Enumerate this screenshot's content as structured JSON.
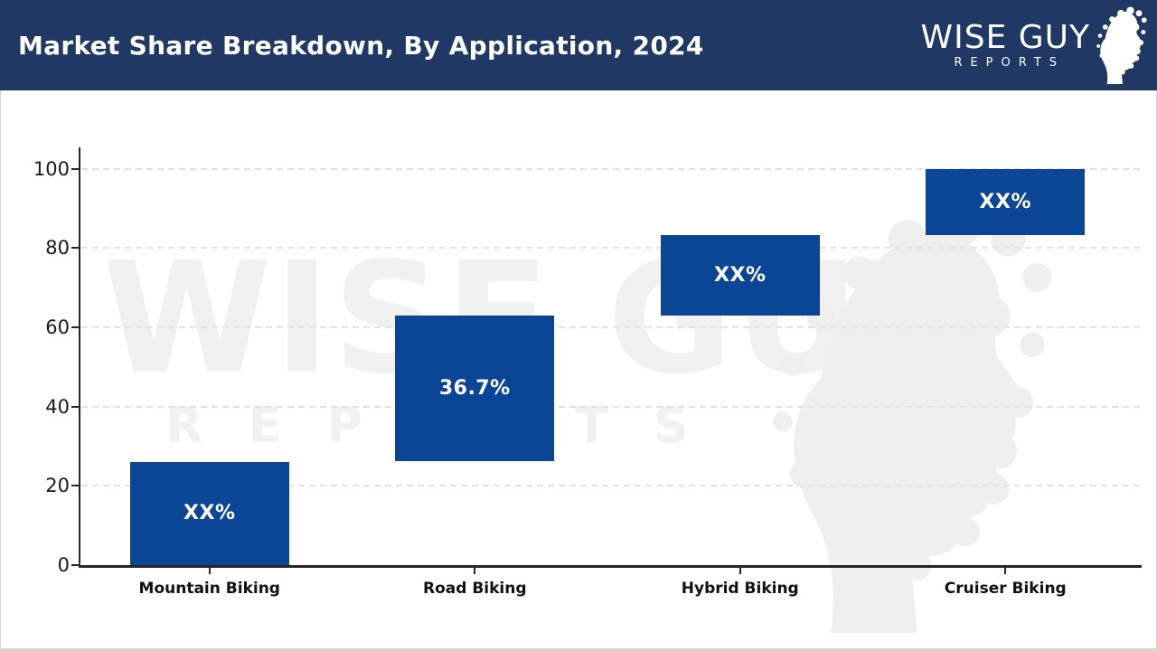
{
  "header": {
    "title": "Market Share Breakdown, By Application, 2024",
    "brand": {
      "line1": "WISE GUY",
      "line2": "REPORTS"
    }
  },
  "watermark": {
    "line1": "WISE GUY",
    "line2": "REPORTS"
  },
  "colors": {
    "header_bg": "#1f3864",
    "bar": "#0b4596",
    "grid": "#e1e1e1",
    "axis": "#262626",
    "text": "#1a1a1a",
    "bar_label": "#ffffff",
    "watermark": "#f1f1f1",
    "card_border": "#d5d5d5"
  },
  "chart_data": {
    "type": "bar",
    "subtype": "floating-waterfall",
    "title": "Market Share Breakdown, By Application, 2024",
    "categories": [
      "Mountain Biking",
      "Road Biking",
      "Hybrid Biking",
      "Cruiser Biking"
    ],
    "segments": [
      {
        "category": "Mountain Biking",
        "start": 0,
        "end": 26,
        "label": "XX%"
      },
      {
        "category": "Road Biking",
        "start": 26.3,
        "end": 63,
        "label": "36.7%"
      },
      {
        "category": "Hybrid Biking",
        "start": 63,
        "end": 83.3,
        "label": "XX%"
      },
      {
        "category": "Cruiser Biking",
        "start": 83.3,
        "end": 100,
        "label": "XX%"
      }
    ],
    "yticks": [
      0,
      20,
      40,
      60,
      80,
      100
    ],
    "ylim": [
      0,
      105
    ],
    "xlabel": "",
    "ylabel": "",
    "grid": "horizontal-dashed",
    "legend": null
  }
}
